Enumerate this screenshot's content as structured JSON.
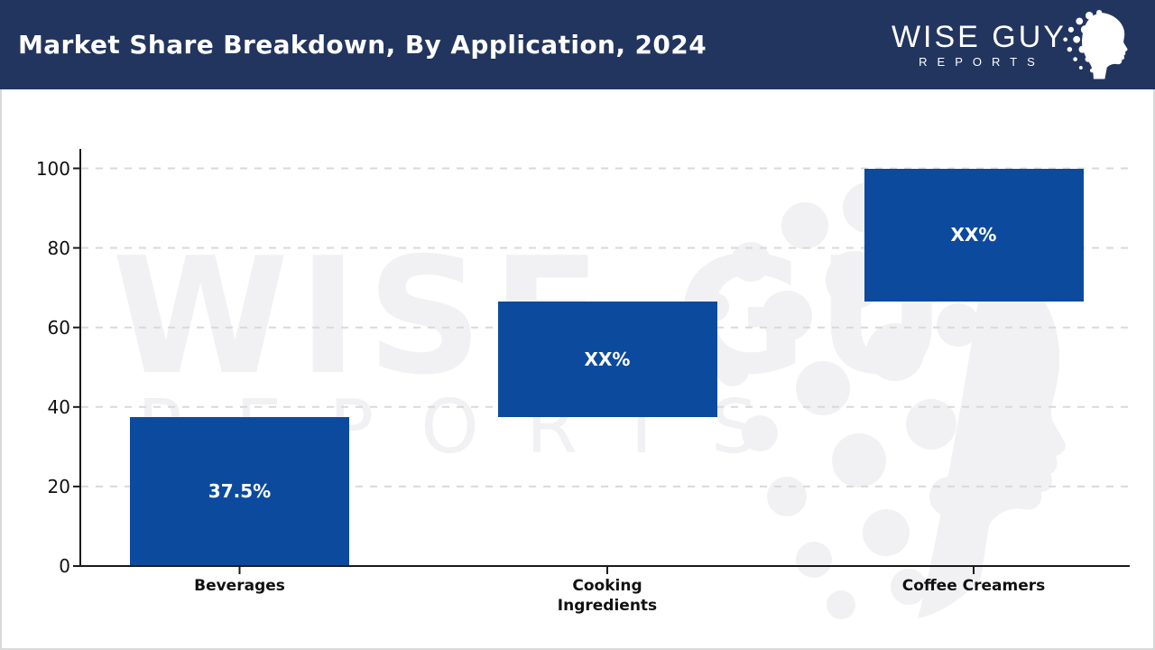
{
  "header": {
    "title": "Market Share Breakdown, By Application, 2024",
    "logo": {
      "name": "WISE GUY",
      "subtitle": "REPORTS"
    }
  },
  "watermark": {
    "line1": "WISE GUY",
    "line2": "REPORTS"
  },
  "chart_data": {
    "type": "bar",
    "subtype": "floating-waterfall",
    "title": "Market Share Breakdown, By Application, 2024",
    "categories": [
      "Beverages",
      "Cooking Ingredients",
      "Coffee Creamers"
    ],
    "categories_display": [
      [
        "Beverages"
      ],
      [
        "Cooking",
        "Ingredients"
      ],
      [
        "Coffee Creamers"
      ]
    ],
    "bars": [
      {
        "category": "Beverages",
        "start": 0,
        "end": 37.5,
        "label": "37.5%"
      },
      {
        "category": "Cooking Ingredients",
        "start": 37.5,
        "end": 66.6,
        "label": "XX%"
      },
      {
        "category": "Coffee Creamers",
        "start": 66.6,
        "end": 100,
        "label": "XX%"
      }
    ],
    "xlabel": "",
    "ylabel": "",
    "ylim": [
      0,
      105
    ],
    "yticks": [
      0,
      20,
      40,
      60,
      80,
      100
    ],
    "grid": "horizontal-dashed",
    "legend": "none",
    "colors": {
      "bar": "#0C4A9E",
      "grid": "#D9D9D9",
      "axis": "#1A1A1A",
      "bar_label_text": "#FFFFFF",
      "header_bg": "#22355F",
      "header_text": "#FFFFFF",
      "watermark": "#F1F1F4",
      "figure_border": "#D9D9D9"
    }
  }
}
